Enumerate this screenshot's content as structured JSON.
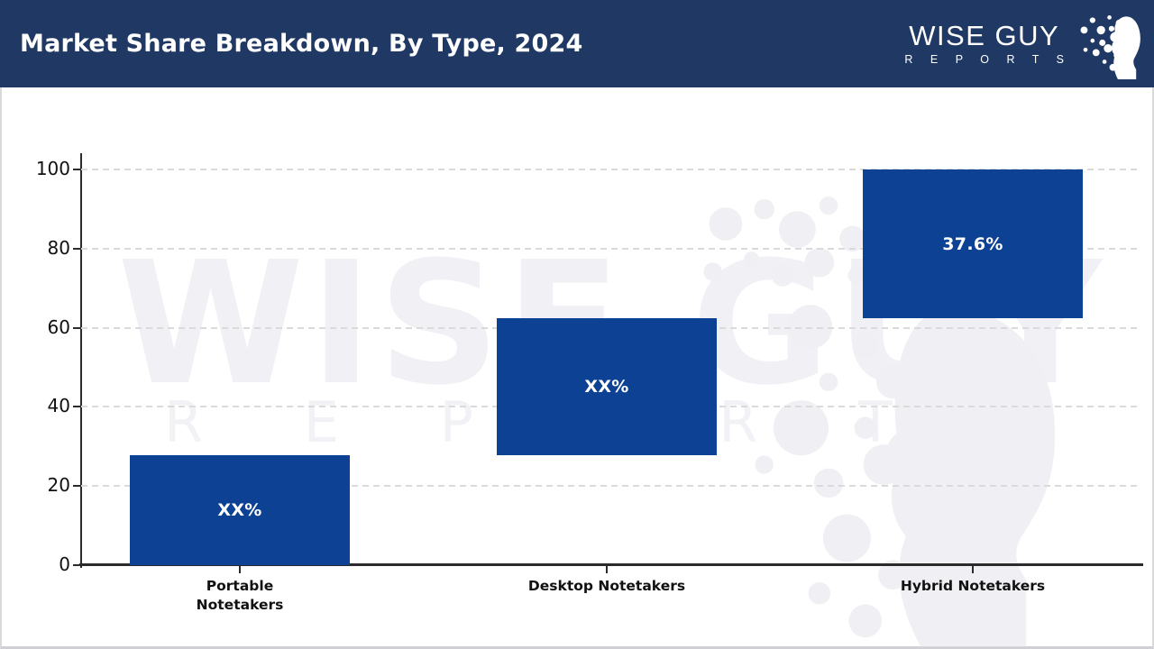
{
  "header": {
    "title": "Market Share Breakdown, By Type, 2024",
    "bg_color": "#1F3864",
    "logo": {
      "line1": "WISE GUY",
      "line2": "R E P O R T S"
    }
  },
  "watermark": {
    "line1": "WISE GUY",
    "line2": "R E P O R T S"
  },
  "chart_data": {
    "type": "bar",
    "subtype": "floating-stacked-percentage-bars",
    "title": "Market Share Breakdown, By Type, 2024",
    "categories": [
      "Portable\nNotetakers",
      "Desktop Notetakers",
      "Hybrid Notetakers"
    ],
    "series": [
      {
        "name": "Market share (%)",
        "segments": [
          {
            "category": "Portable Notetakers",
            "start": 0,
            "end": 27.9,
            "label": "XX%"
          },
          {
            "category": "Desktop Notetakers",
            "start": 27.9,
            "end": 62.4,
            "label": "XX%"
          },
          {
            "category": "Hybrid Notetakers",
            "start": 62.4,
            "end": 100,
            "label": "37.6%"
          }
        ]
      }
    ],
    "yticks": [
      0,
      20,
      40,
      60,
      80,
      100
    ],
    "ylim": [
      0,
      105
    ],
    "xlabel": "",
    "ylabel": "",
    "grid": "horizontal-dashed",
    "legend": "none",
    "colors": {
      "bar": "#0C4194",
      "grid": "#DADADA",
      "axis": "#2B2B2B",
      "header_bg": "#1F3864",
      "bar_label_text": "#FFFFFF",
      "watermark": "#F1F1F5"
    }
  }
}
